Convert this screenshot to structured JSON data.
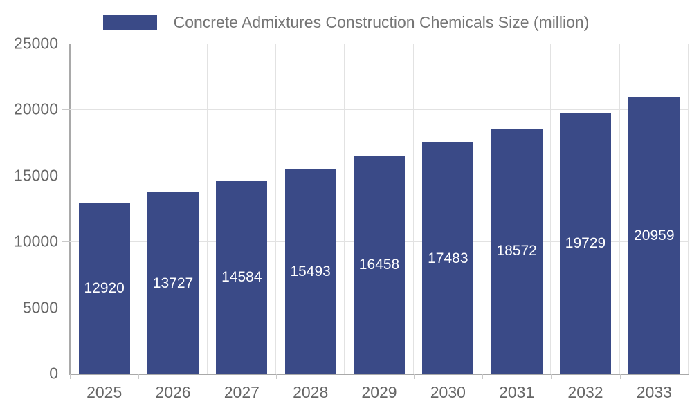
{
  "legend": {
    "label": "Concrete Admixtures Construction Chemicals Size (million)"
  },
  "chart_data": {
    "type": "bar",
    "title": "Concrete Admixtures Construction Chemicals Size (million)",
    "categories": [
      "2025",
      "2026",
      "2027",
      "2028",
      "2029",
      "2030",
      "2031",
      "2032",
      "2033"
    ],
    "values": [
      12920,
      13727,
      14584,
      15493,
      16458,
      17483,
      18572,
      19729,
      20959
    ],
    "series_name": "Concrete Admixtures Construction Chemicals Size (million)",
    "xlabel": "",
    "ylabel": "",
    "ylim": [
      0,
      25000
    ],
    "yticks": [
      0,
      5000,
      10000,
      15000,
      20000,
      25000
    ],
    "grid": true,
    "legend_position": "top-center",
    "value_labels": "inside-center"
  },
  "colors": {
    "bar": "#3A4A87",
    "value_label": "#ffffff",
    "legend_text": "#757575",
    "tick_text": "#666666",
    "gridline": "#e2e2e2",
    "axis_line": "#a9a9a9",
    "tick_mark": "#c9c9c9"
  }
}
